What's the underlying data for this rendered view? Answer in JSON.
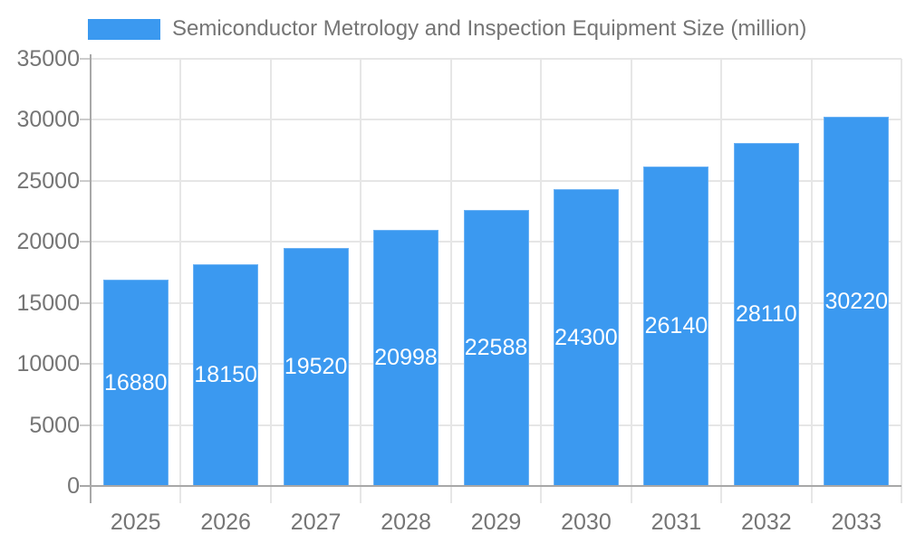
{
  "legend": {
    "label": "Semiconductor Metrology and Inspection Equipment Size (million)"
  },
  "chart_data": {
    "type": "bar",
    "title": "Semiconductor Metrology and Inspection Equipment Size (million)",
    "categories": [
      "2025",
      "2026",
      "2027",
      "2028",
      "2029",
      "2030",
      "2031",
      "2032",
      "2033"
    ],
    "series": [
      {
        "name": "Semiconductor Metrology and Inspection Equipment Size (million)",
        "values": [
          16880,
          18150,
          19520,
          20998,
          22588,
          24300,
          26140,
          28110,
          30220
        ]
      }
    ],
    "value_labels": [
      "16880",
      "18150",
      "19520",
      "20998",
      "22588",
      "24300",
      "26140",
      "28110",
      "30220"
    ],
    "xlabel": "",
    "ylabel": "",
    "ylim": [
      0,
      35000
    ],
    "yticks": [
      0,
      5000,
      10000,
      15000,
      20000,
      25000,
      30000,
      35000
    ],
    "ytick_labels": [
      "0",
      "5000",
      "10000",
      "15000",
      "20000",
      "25000",
      "30000",
      "35000"
    ],
    "grid": true,
    "legend_position": "top",
    "colors": {
      "bar": "#3B99F0",
      "value_label": "#FFFFFF",
      "axis_text": "#757575",
      "gridline": "#E6E6E6",
      "axis_line": "#A8A8A8",
      "tick": "#CCCCCC",
      "background": "#FFFFFF"
    }
  }
}
